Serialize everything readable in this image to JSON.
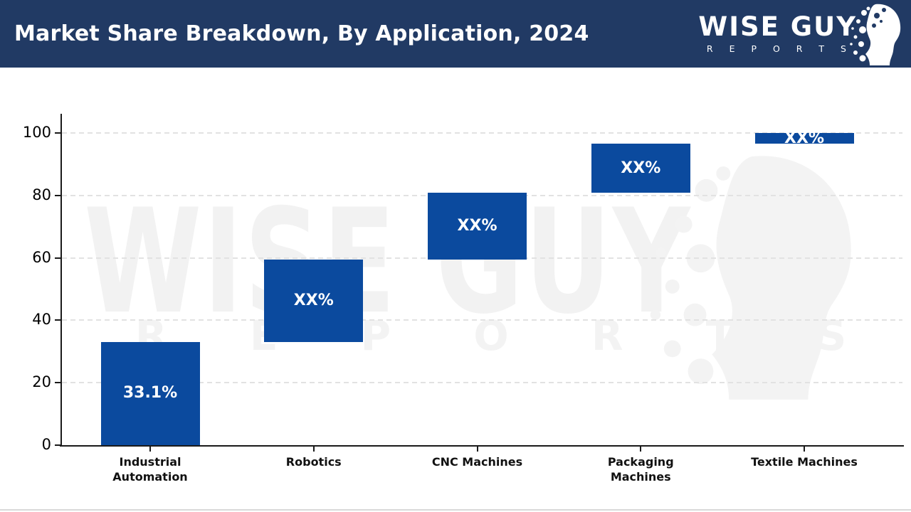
{
  "header": {
    "title": "Market Share Breakdown, By Application, 2024",
    "logo": {
      "name": "WISE GUY",
      "subtitle": "R E P O R T S"
    }
  },
  "watermark": {
    "big_text": "WISE GUY",
    "small_text": "R E P O R T S"
  },
  "chart_data": {
    "type": "bar",
    "subtype": "waterfall",
    "title": "Market Share Breakdown, By Application, 2024",
    "categories": [
      "Industrial Automation",
      "Robotics",
      "CNC Machines",
      "Packaging Machines",
      "Textile Machines"
    ],
    "segments": [
      {
        "category": "Industrial Automation",
        "label": "33.1%",
        "start": 0,
        "end": 33.1
      },
      {
        "category": "Robotics",
        "label": "XX%",
        "start": 33.1,
        "end": 59.5
      },
      {
        "category": "CNC Machines",
        "label": "XX%",
        "start": 59.5,
        "end": 80.9
      },
      {
        "category": "Packaging Machines",
        "label": "XX%",
        "start": 80.9,
        "end": 96.5
      },
      {
        "category": "Textile Machines",
        "label": "XX%",
        "start": 96.5,
        "end": 100
      }
    ],
    "ylim": [
      0,
      100
    ],
    "y_ticks": [
      "0",
      "20",
      "40",
      "60",
      "80",
      "100"
    ],
    "grid": "horizontal-dashed",
    "legend": "none",
    "bar_color": "#0b4a9e",
    "bar_label_color": "#ffffff",
    "axis_color": "#1a1a1a",
    "gridline_color": "#e2e2e2"
  },
  "colors": {
    "header_bg": "#213a64",
    "canvas_bg": "#ffffff",
    "footer_line": "#d9d9d9"
  }
}
